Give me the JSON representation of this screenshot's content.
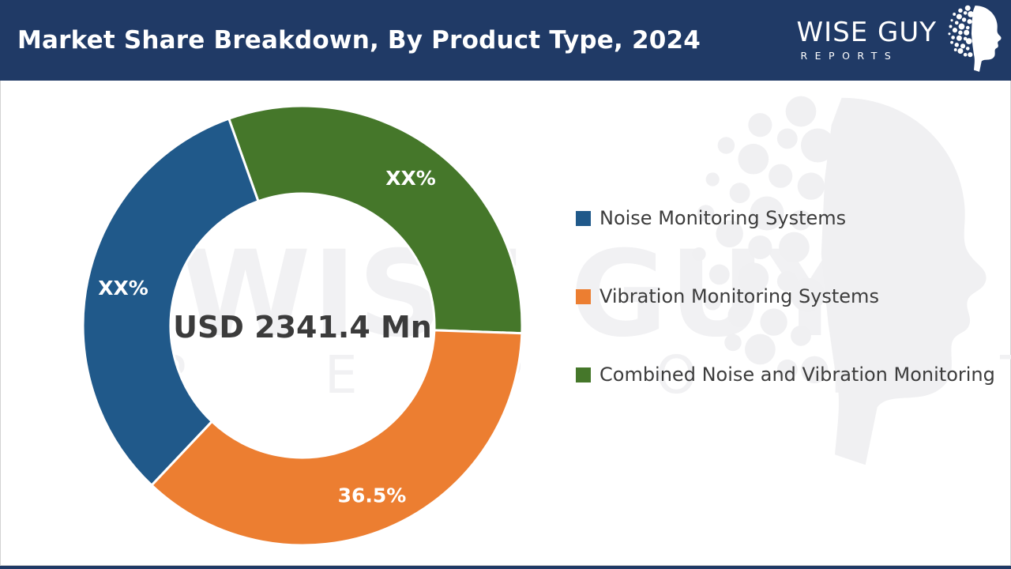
{
  "header": {
    "title": "Market Share Breakdown, By Product Type, 2024",
    "bg_color": "#203A66",
    "logo": {
      "line1": "WISE GUY",
      "line2": "REPORTS"
    }
  },
  "watermark": {
    "line1": "WISE GUY",
    "line2": "R E P O R T S",
    "text_color": "#f1f1f3",
    "face_color": "#f0f0f2"
  },
  "chart_data": {
    "type": "pie",
    "donut": true,
    "title": "Market Share Breakdown, By Product Type, 2024",
    "center_label": "USD 2341.4 Mn",
    "rotation_deg_from_12": -19.6,
    "legend_position": "right",
    "segments": [
      {
        "label": "Noise Monitoring Systems",
        "value_pct": 32.5,
        "display_label": "XX%",
        "color": "#20598A"
      },
      {
        "label": "Vibration Monitoring Systems",
        "value_pct": 36.5,
        "display_label": "36.5%",
        "color": "#EC7E31"
      },
      {
        "label": "Combined Noise and Vibration Monitoring",
        "value_pct": 31.0,
        "display_label": "XX%",
        "color": "#45772A"
      }
    ],
    "draw_order_clockwise": [
      2,
      1,
      0
    ]
  },
  "footer": {
    "bar_color": "#203A66",
    "border_color": "#c9c9c9"
  }
}
